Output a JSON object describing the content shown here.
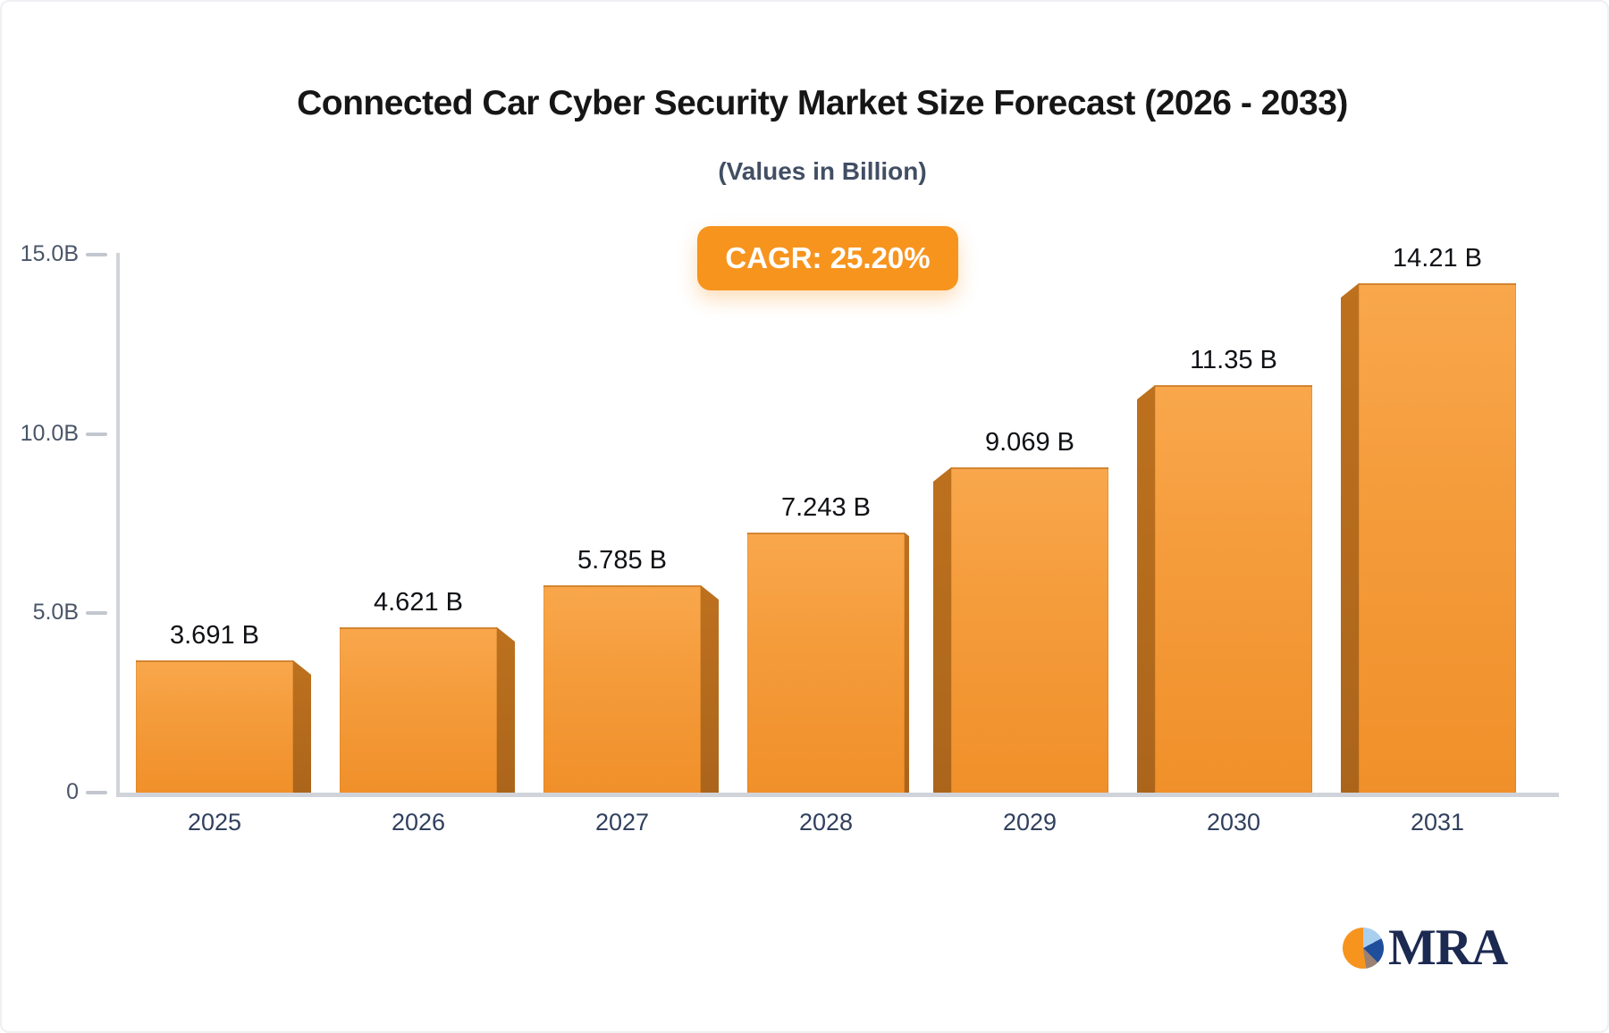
{
  "header": {
    "title": "Connected Car Cyber Security Market Size Forecast (2026 - 2033)",
    "subtitle": "(Values in Billion)"
  },
  "badge": {
    "label": "CAGR: 25.20%",
    "bg_color": "#f7941e",
    "text_color": "#ffffff"
  },
  "chart_data": {
    "type": "bar",
    "title": "Connected Car Cyber Security Market Size Forecast (2026 - 2033)",
    "subtitle": "(Values in Billion)",
    "unit": "Billion",
    "cagr": "25.20%",
    "categories": [
      "2025",
      "2026",
      "2027",
      "2028",
      "2029",
      "2030",
      "2031"
    ],
    "values": [
      3.691,
      4.621,
      5.785,
      7.243,
      9.069,
      11.35,
      14.21
    ],
    "value_labels": [
      "3.691 B",
      "4.621 B",
      "5.785 B",
      "7.243 B",
      "9.069 B",
      "11.35 B",
      "14.21 B"
    ],
    "ylim": [
      0,
      15
    ],
    "yticks": {
      "values": [
        0,
        5,
        10,
        15
      ],
      "labels": [
        "0",
        "5.0B",
        "10.0B",
        "15.0B"
      ]
    },
    "grid": false,
    "legend": false,
    "bar_color_top": "#f9a74c",
    "bar_color_bottom": "#f0902a",
    "bar_side_color": "#b56c1b",
    "axis_color": "#d0d4da"
  },
  "logo": {
    "text": "MRA",
    "text_color": "#1c2951",
    "pie_colors": {
      "orange": "#f7941e",
      "light_blue": "#a9cfef",
      "dark_blue": "#1f4e9c",
      "brown": "#9a8173"
    }
  }
}
